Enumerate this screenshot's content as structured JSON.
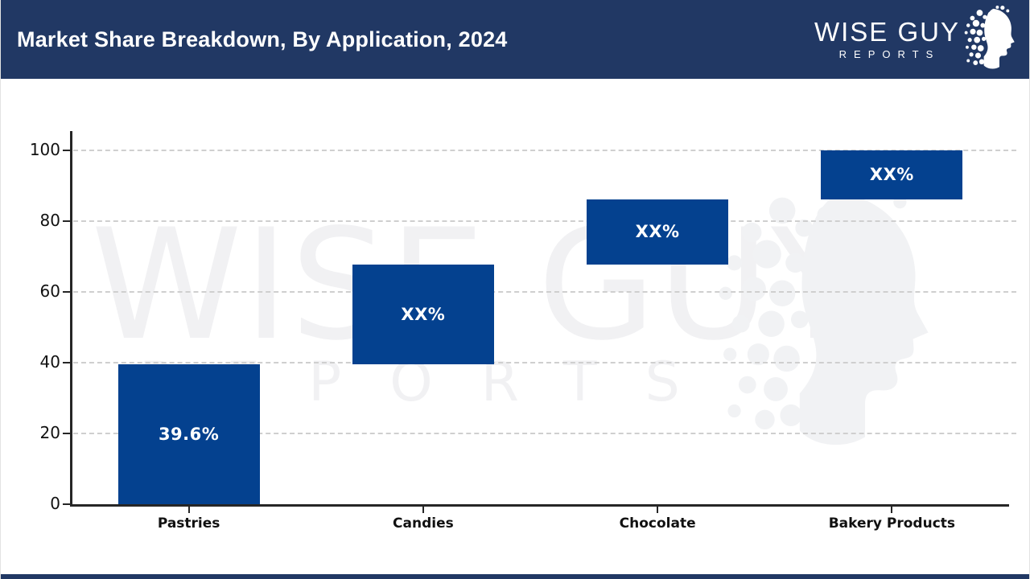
{
  "header": {
    "title": "Market Share Breakdown, By Application, 2024",
    "bg_color": "#213864",
    "text_color": "#ffffff",
    "logo": {
      "wordmark": "WISE GUY",
      "subtext": "REPORTS"
    }
  },
  "watermark": {
    "wordmark": "WISE GUY",
    "subtext": "REPORTS"
  },
  "footer": {
    "bg_color": "#213864"
  },
  "chart_data": {
    "type": "bar",
    "subtype": "waterfall",
    "title": "Market Share Breakdown, By Application, 2024",
    "categories": [
      "Pastries",
      "Candies",
      "Chocolate",
      "Bakery Products"
    ],
    "segments": [
      {
        "category": "Pastries",
        "start": 0,
        "end": 39.6,
        "label": "39.6%"
      },
      {
        "category": "Candies",
        "start": 39.6,
        "end": 67.7,
        "label": "XX%"
      },
      {
        "category": "Chocolate",
        "start": 67.7,
        "end": 86.2,
        "label": "XX%"
      },
      {
        "category": "Bakery Products",
        "start": 86.2,
        "end": 100,
        "label": "XX%"
      }
    ],
    "xlabel": "",
    "ylabel": "",
    "ylim": [
      0,
      105.4
    ],
    "yticks": [
      0,
      20,
      40,
      60,
      80,
      100
    ],
    "grid": "horizontal-dashed",
    "legend": null,
    "bar_color": "#04418f",
    "bar_label_color": "#ffffff",
    "axis_color": "#262626",
    "gridline_color": "#cfcfcf"
  }
}
